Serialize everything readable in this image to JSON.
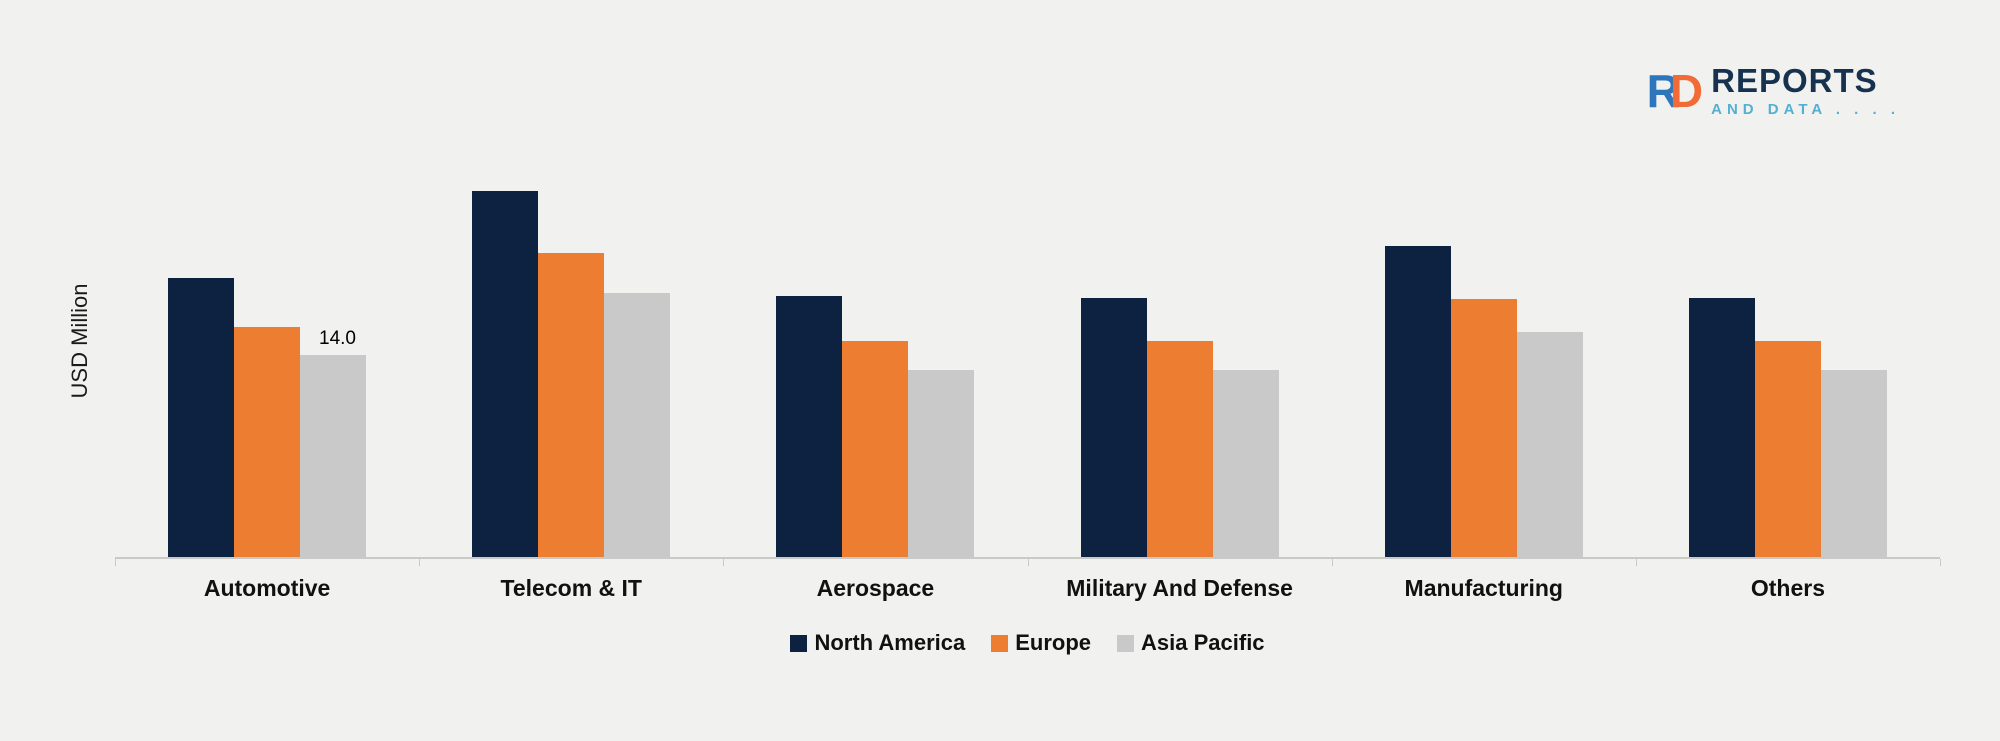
{
  "background_color": "#f1f1ef",
  "logo": {
    "icon": "rd-logo-icon",
    "text_main": "REPORTS",
    "text_sub": "AND DATA . . . .",
    "color_main": "#16324f",
    "color_sub": "#54b0d2",
    "icon_blue": "#2e76bc",
    "icon_orange": "#f26a36"
  },
  "chart_data": {
    "type": "bar",
    "title": "",
    "xlabel": "",
    "ylabel": "USD Million",
    "ylim": [
      0,
      30
    ],
    "grid": false,
    "legend_position": "bottom",
    "categories": [
      "Automotive",
      "Telecom & IT",
      "Aerospace",
      "Military And Defense",
      "Manufacturing",
      "Others"
    ],
    "series": [
      {
        "name": "North America",
        "color": "#0d2240",
        "values": [
          19.4,
          25.4,
          18.1,
          18.0,
          21.6,
          18.0
        ]
      },
      {
        "name": "Europe",
        "color": "#ed7d31",
        "values": [
          16.0,
          21.1,
          15.0,
          15.0,
          17.9,
          15.0
        ]
      },
      {
        "name": "Asia Pacific",
        "color": "#c9c9c9",
        "values": [
          14.0,
          18.3,
          13.0,
          13.0,
          15.6,
          13.0
        ]
      }
    ],
    "annotations": [
      {
        "series": "Asia Pacific",
        "category": "Automotive",
        "text": "14.0"
      }
    ]
  }
}
